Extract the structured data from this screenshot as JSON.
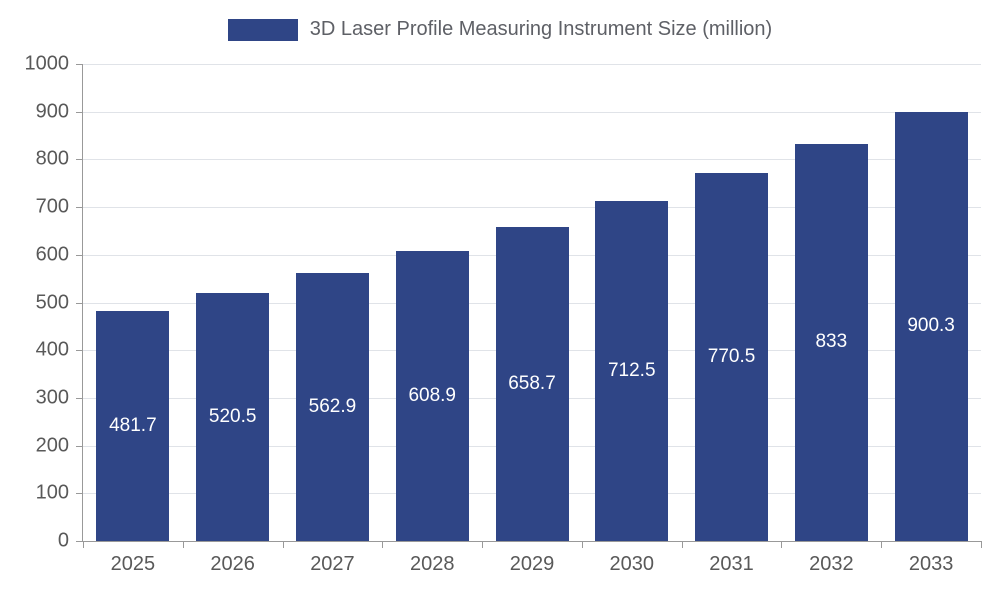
{
  "chart_data": {
    "type": "bar",
    "title": "3D Laser Profile Measuring Instrument Size (million)",
    "categories": [
      "2025",
      "2026",
      "2027",
      "2028",
      "2029",
      "2030",
      "2031",
      "2032",
      "2033"
    ],
    "values": [
      481.7,
      520.5,
      562.9,
      608.9,
      658.7,
      712.5,
      770.5,
      833,
      900.3
    ],
    "xlabel": "",
    "ylabel": "",
    "ylim": [
      0,
      1000
    ],
    "ytick_step": 100,
    "grid": true,
    "legend_position": "top",
    "colors": {
      "bar": "#2f4586",
      "bar_label": "#ffffff",
      "axis_line": "#999999",
      "axis_text": "#595959",
      "gridline": "#e0e3e8",
      "legend_text": "#5e6066",
      "background": "#ffffff"
    }
  }
}
